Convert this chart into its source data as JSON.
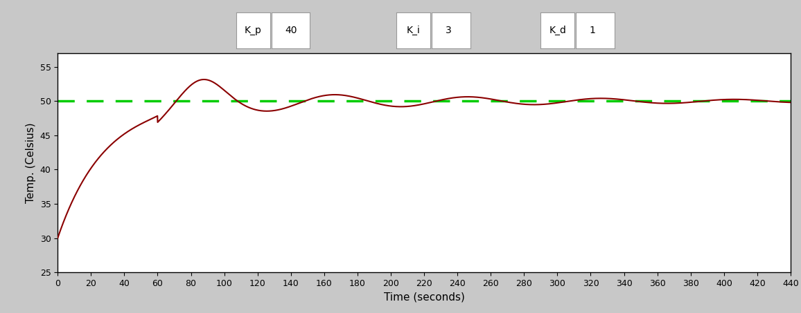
{
  "setpoint": 50,
  "y_start": 30,
  "x_min": 0,
  "x_max": 440,
  "y_min": 25,
  "y_max": 57,
  "x_ticks": [
    0,
    20,
    40,
    60,
    80,
    100,
    120,
    140,
    160,
    180,
    200,
    220,
    240,
    260,
    280,
    300,
    320,
    340,
    360,
    380,
    400,
    420,
    440
  ],
  "y_ticks": [
    25,
    30,
    35,
    40,
    45,
    50,
    55
  ],
  "xlabel": "Time (seconds)",
  "ylabel": "Temp. (Celsius)",
  "bg_color": "#c8c8c8",
  "plot_bg": "#ffffff",
  "line_color": "#8b0000",
  "setpoint_color": "#00cc00",
  "Kp": "40",
  "Ki": "3",
  "Kd": "1",
  "figsize": [
    11.56,
    4.53
  ],
  "dpi": 100
}
